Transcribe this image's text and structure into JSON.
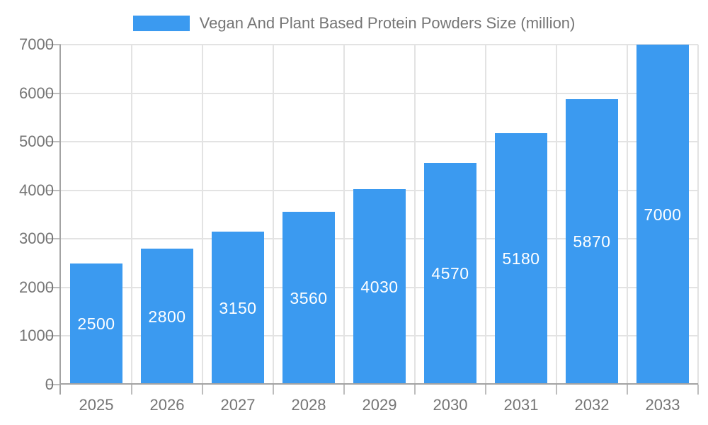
{
  "legend": {
    "items": [
      {
        "label": "Vegan And Plant Based Protein Powders Size (million)",
        "color": "#3b9af0"
      }
    ]
  },
  "chart_data": {
    "type": "bar",
    "title": "Vegan And Plant Based Protein Powders Size (million)",
    "categories": [
      "2025",
      "2026",
      "2027",
      "2028",
      "2029",
      "2030",
      "2031",
      "2032",
      "2033"
    ],
    "values": [
      2500,
      2800,
      3150,
      3560,
      4030,
      4570,
      5180,
      5870,
      7000
    ],
    "xlabel": "",
    "ylabel": "",
    "ylim": [
      0,
      7000
    ],
    "yticks": [
      0,
      1000,
      2000,
      3000,
      4000,
      5000,
      6000,
      7000
    ],
    "grid": true,
    "legend_position": "top",
    "value_labels_inside_bars": true
  },
  "colors": {
    "bar": "#3b9af0",
    "axis": "#a3a3a3",
    "tick": "#bdbdbd",
    "gridline": "#e3e3e3",
    "tick_text": "#757575",
    "value_text": "#ffffff",
    "background": "#ffffff"
  }
}
